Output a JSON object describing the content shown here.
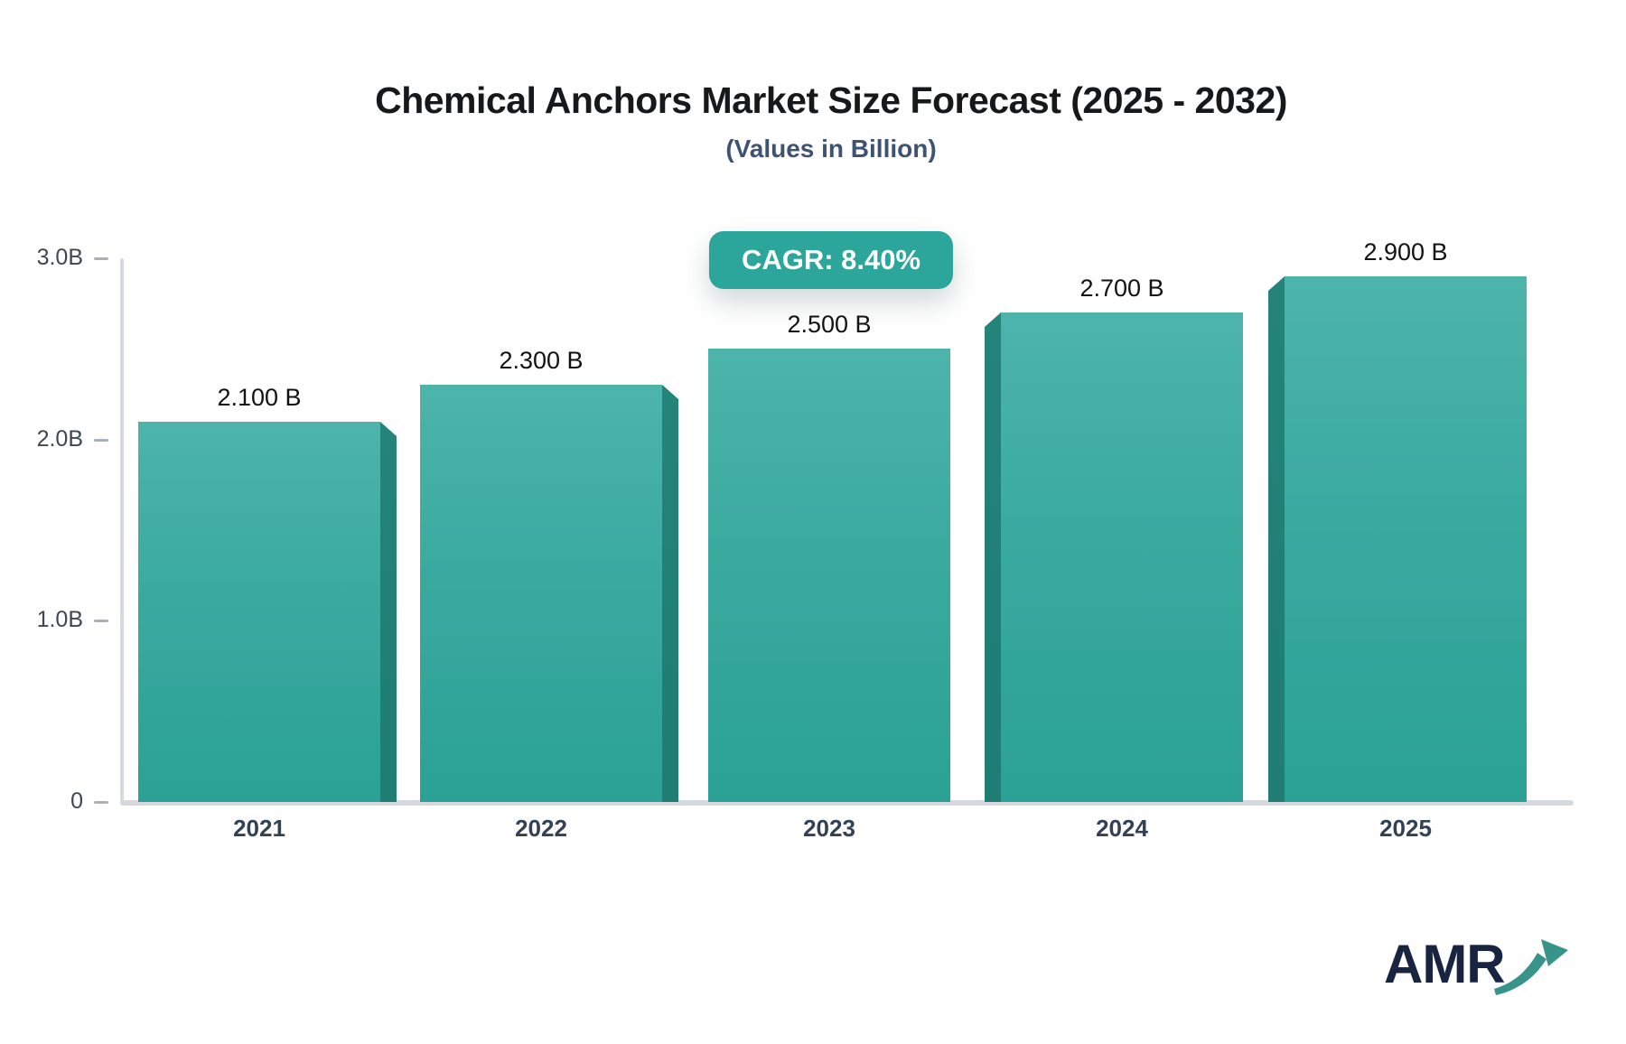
{
  "header": {
    "title": "Chemical Anchors Market Size Forecast (2025 - 2032)",
    "subtitle": "(Values in Billion)"
  },
  "badge": {
    "label": "CAGR: 8.40%"
  },
  "chart_data": {
    "type": "bar",
    "title": "Chemical Anchors Market Size Forecast (2025 - 2032)",
    "subtitle": "(Values in Billion)",
    "categories": [
      "2021",
      "2022",
      "2023",
      "2024",
      "2025"
    ],
    "values": [
      2.1,
      2.3,
      2.5,
      2.7,
      2.9
    ],
    "data_labels": [
      "2.100 B",
      "2.300 B",
      "2.500 B",
      "2.700 B",
      "2.900 B"
    ],
    "cagr_label": "CAGR: 8.40%",
    "xlabel": "",
    "ylabel": "",
    "ylim": [
      0,
      3.0
    ],
    "y_ticks": [
      {
        "label": "0",
        "value": 0
      },
      {
        "label": "1.0B",
        "value": 1.0
      },
      {
        "label": "2.0B",
        "value": 2.0
      },
      {
        "label": "3.0B",
        "value": 3.0
      }
    ],
    "grid": false,
    "legend": false,
    "bar_color_top": "#4db4ab",
    "bar_color_bottom": "#2ba195",
    "bar_side_color": "#1f7d73",
    "axis_color": "#d5d9dd",
    "badge_color": "#2ca59b"
  },
  "logo": {
    "text": "AMR"
  }
}
